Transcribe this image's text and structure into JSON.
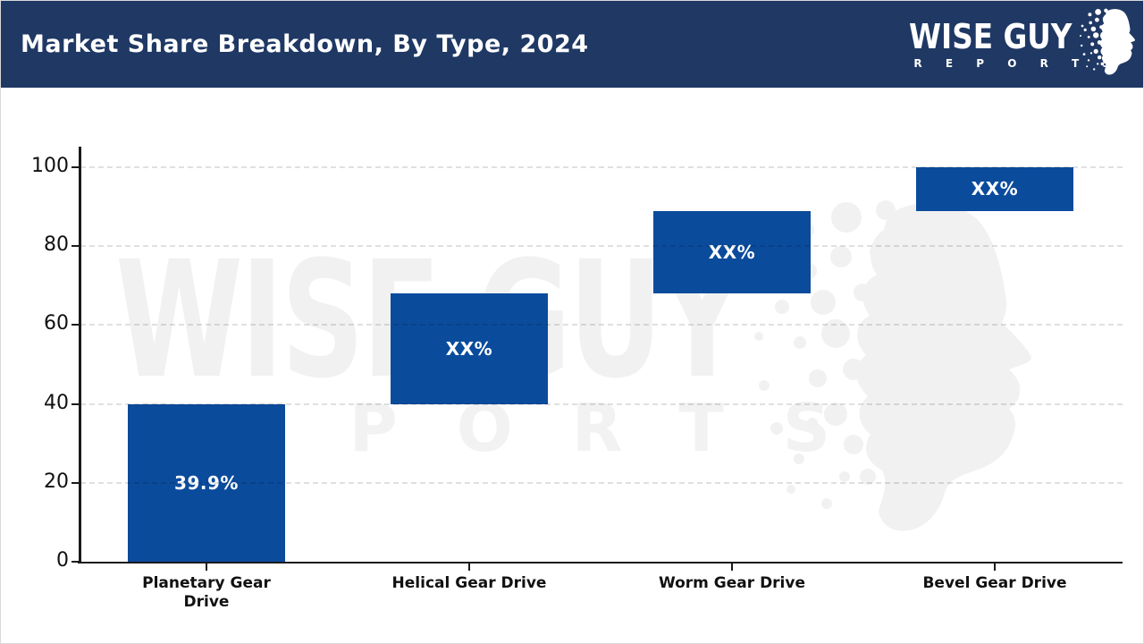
{
  "header": {
    "title": "Market Share Breakdown, By Type, 2024",
    "logo": {
      "line1": "WISE GUY",
      "line2": "R E P O R T S",
      "face_icon": "dotted-head-profile"
    }
  },
  "watermark": {
    "line1": "WISE GUY",
    "line2": "REPORTS",
    "face_icon": "dotted-head-profile"
  },
  "colors": {
    "header_bg": "#1f3864",
    "bar": "#0b4b9c",
    "bar_label": "#ffffff",
    "axis": "#1a1a1a",
    "gridline": "#dddddd",
    "watermark": "#f1f1f1"
  },
  "chart_data": {
    "type": "bar",
    "subtype": "waterfall",
    "title": "Market Share Breakdown, By Type, 2024",
    "xlabel": "",
    "ylabel": "",
    "ylim": [
      0,
      100
    ],
    "yticks": [
      0,
      20,
      40,
      60,
      80,
      100
    ],
    "grid": "horizontal-dashed",
    "legend": "none",
    "categories": [
      "Planetary Gear Drive",
      "Helical Gear Drive",
      "Worm Gear Drive",
      "Bevel Gear Drive"
    ],
    "category_label_lines": [
      [
        "Planetary Gear",
        "Drive"
      ],
      [
        "Helical Gear Drive"
      ],
      [
        "Worm Gear Drive"
      ],
      [
        "Bevel Gear Drive"
      ]
    ],
    "segments": [
      {
        "category": "Planetary Gear Drive",
        "start": 0,
        "end": 39.9,
        "size": 39.9,
        "label": "39.9%"
      },
      {
        "category": "Helical Gear Drive",
        "start": 39.9,
        "end": 67.9,
        "size": 28.0,
        "label": "XX%"
      },
      {
        "category": "Worm Gear Drive",
        "start": 67.9,
        "end": 88.9,
        "size": 21.0,
        "label": "XX%"
      },
      {
        "category": "Bevel Gear Drive",
        "start": 88.9,
        "end": 100,
        "size": 11.1,
        "label": "XX%"
      }
    ]
  }
}
